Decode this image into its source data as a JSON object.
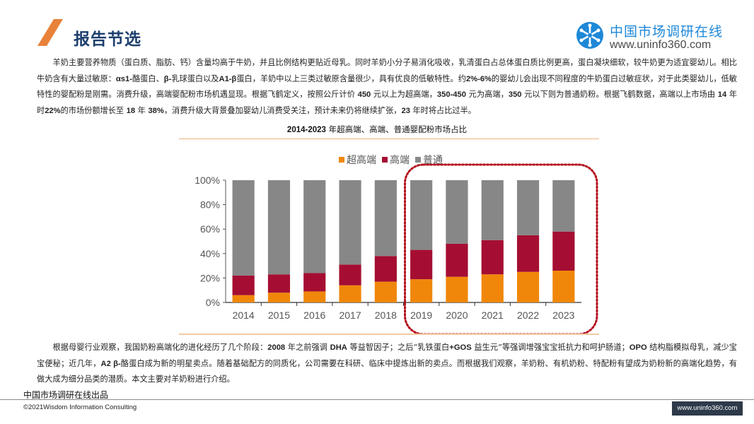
{
  "header": {
    "title": "报告节选",
    "accent_color": "#e8823a",
    "title_color": "#1d3f6e"
  },
  "logo": {
    "icon": "snowflake-arrows-logo-icon",
    "name_cn": "中国市场调研在线",
    "url": "www.uninfo360.com",
    "brand_color": "#1e88d8"
  },
  "paragraph1": [
    {
      "t": "羊奶主要营养物质（蛋白质、脂肪、钙）含量均高于牛奶，并且比例结构更贴近母乳。同时羊奶小分子易消化吸收，乳清蛋白占总体蛋白质比例更高，蛋白凝块细软，较牛奶更为适宜婴幼儿。相比牛奶含有大量过敏原：",
      "b": false
    },
    {
      "t": "αs1-",
      "b": true
    },
    {
      "t": "酪蛋白、",
      "b": false
    },
    {
      "t": "β-",
      "b": true
    },
    {
      "t": "乳球蛋白以及",
      "b": false
    },
    {
      "t": "A1-β",
      "b": true
    },
    {
      "t": "蛋白，羊奶中以上三类过敏原含量很少，具有优良的低敏特性。约",
      "b": false
    },
    {
      "t": "2%-6%",
      "b": true
    },
    {
      "t": "的婴幼儿会出现不同程度的牛奶蛋白过敏症状，对于此类婴幼儿，低敏特性的婴配粉是刚需。消费升级，高端婴配粉市场机遇显现。根据飞鹤定义，按照公斤计价 ",
      "b": false
    },
    {
      "t": "450",
      "b": true
    },
    {
      "t": " 元以上为超高端，",
      "b": false
    },
    {
      "t": "350-450",
      "b": true
    },
    {
      "t": " 元为高端，",
      "b": false
    },
    {
      "t": "350",
      "b": true
    },
    {
      "t": " 元以下则为普通奶粉。根据飞鹤数据，高端以上市场由 ",
      "b": false
    },
    {
      "t": "14",
      "b": true
    },
    {
      "t": " 年时",
      "b": false
    },
    {
      "t": "22%",
      "b": true
    },
    {
      "t": "的市场份额增长至 ",
      "b": false
    },
    {
      "t": "18",
      "b": true
    },
    {
      "t": " 年 ",
      "b": false
    },
    {
      "t": "38%",
      "b": true
    },
    {
      "t": "，消费升级大背景叠加婴幼儿消费受关注，预计未来仍将继续扩张，",
      "b": false
    },
    {
      "t": "23",
      "b": true
    },
    {
      "t": " 年时将占比过半。",
      "b": false
    }
  ],
  "paragraph2": [
    {
      "t": "根据母婴行业观察，我国奶粉高端化的进化经历了几个阶段：",
      "b": false
    },
    {
      "t": "2008",
      "b": true
    },
    {
      "t": " 年之前强调 ",
      "b": false
    },
    {
      "t": "DHA",
      "b": true
    },
    {
      "t": " 等益智因子；之后“乳铁蛋白",
      "b": false
    },
    {
      "t": "+GOS",
      "b": true
    },
    {
      "t": " 益生元”等强调增强宝宝抵抗力和呵护肠道；",
      "b": false
    },
    {
      "t": "OPO",
      "b": true
    },
    {
      "t": " 结构脂模拟母乳，减少宝宝便秘；近几年，",
      "b": false
    },
    {
      "t": "A2 β-",
      "b": true
    },
    {
      "t": "酪蛋白成为新的明星卖点。随着基础配方的同质化，公司需要在科研、临床中提炼出新的卖点。而根据我们观察，羊奶粉、有机奶粉、特配粉有望成为奶粉新的高端化趋势，有做大成为细分品类的潜质。本文主要对羊奶粉进行介绍。",
      "b": false
    }
  ],
  "chart_title": {
    "bold": "2014-2023",
    "rest": " 年超高端、高端、普通婴配粉市场占比"
  },
  "chart_data": {
    "type": "bar",
    "stacked": true,
    "title": "2014-2023 年超高端、高端、普通婴配粉市场占比",
    "xlabel": "",
    "ylabel": "",
    "categories": [
      "2014",
      "2015",
      "2016",
      "2017",
      "2018",
      "2019",
      "2020",
      "2021",
      "2022",
      "2023"
    ],
    "series": [
      {
        "name": "超高端",
        "color": "#f0870a",
        "values": [
          6,
          8,
          9,
          14,
          17,
          19,
          21,
          23,
          25,
          26
        ]
      },
      {
        "name": "高端",
        "color": "#a50e32",
        "values": [
          16,
          15,
          15,
          17,
          21,
          24,
          27,
          28,
          30,
          32
        ]
      },
      {
        "name": "普通",
        "color": "#878787",
        "values": [
          78,
          77,
          76,
          69,
          62,
          57,
          52,
          49,
          45,
          42
        ]
      }
    ],
    "ylim": [
      0,
      100
    ],
    "yticks": [
      "0%",
      "20%",
      "40%",
      "60%",
      "80%",
      "100%"
    ],
    "ytick_values": [
      0,
      20,
      40,
      60,
      80,
      100
    ],
    "grid": false,
    "legend": "top-center",
    "annotation": {
      "type": "dotted-rounded-box",
      "highlight": [
        "2019",
        "2020",
        "2021",
        "2022",
        "2023"
      ],
      "color": "#b4121e"
    }
  },
  "footer": {
    "credit": "中国市场调研在线出品",
    "copyright": "©2021Wisdom Information Consulting",
    "url_badge": "www.uninfo360.com"
  }
}
